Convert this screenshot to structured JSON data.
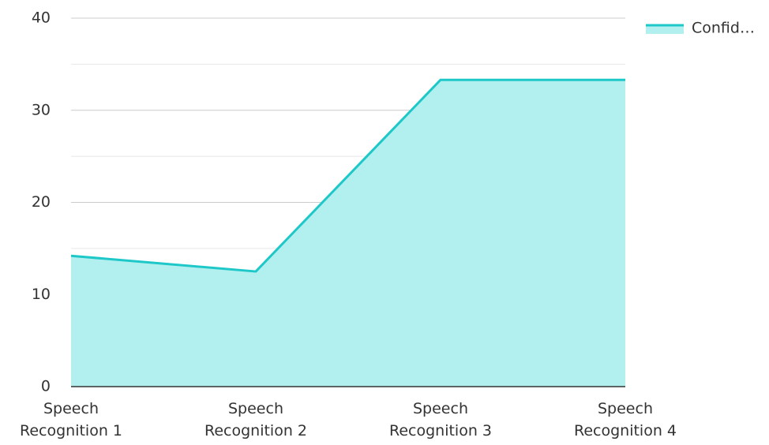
{
  "chart_data": {
    "type": "area",
    "categories": [
      "Speech Recognition 1",
      "Speech Recognition 2",
      "Speech Recognition 3",
      "Speech Recognition 4"
    ],
    "series": [
      {
        "name": "Confid…",
        "color": "#1ec8c8",
        "fill": "#b2efef",
        "values": [
          14.2,
          12.5,
          33.3,
          33.3
        ]
      }
    ],
    "ylim": [
      0,
      40
    ],
    "yticks": [
      0,
      10,
      20,
      30,
      40
    ],
    "yminor_ticks": [
      5,
      15,
      25,
      35
    ],
    "grid": true,
    "legend": "top-right"
  }
}
